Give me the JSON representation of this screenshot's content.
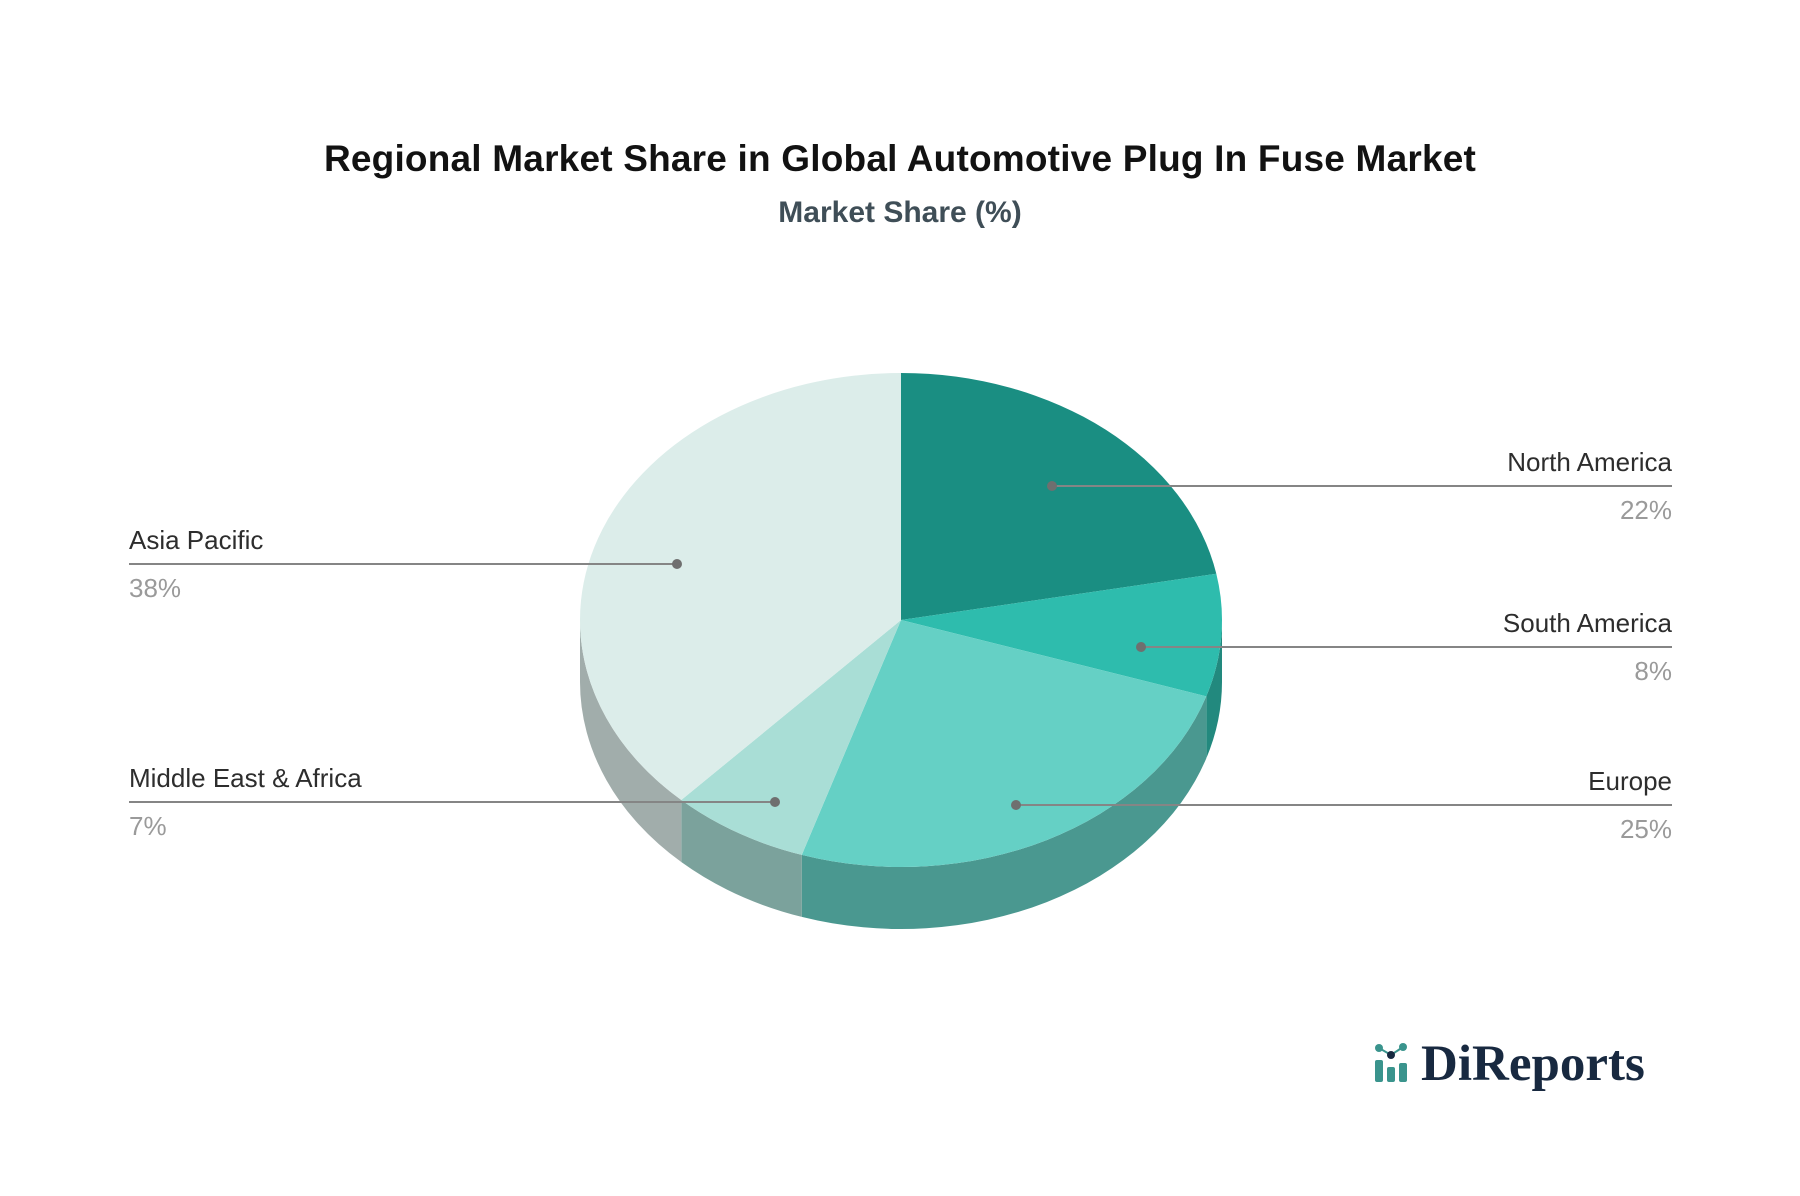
{
  "chart_data": {
    "type": "pie",
    "style": "3d",
    "title": "Regional Market Share in Global Automotive Plug In Fuse Market",
    "subtitle": "Market Share (%)",
    "categories": [
      "North America",
      "South America",
      "Europe",
      "Middle East & Africa",
      "Asia Pacific"
    ],
    "values": [
      22,
      8,
      25,
      7,
      38
    ],
    "value_labels": [
      "22%",
      "8%",
      "25%",
      "7%",
      "38%"
    ],
    "unit": "%",
    "colors": [
      "#1a8e82",
      "#2ebcad",
      "#65d0c5",
      "#a9ded6",
      "#dcedea"
    ],
    "start_angle": "top",
    "direction": "clockwise",
    "label_positions": [
      "right",
      "right",
      "right",
      "left",
      "left"
    ],
    "legend": "none",
    "label_text_color": "#2d2d2d",
    "pct_text_color": "#9a9a9a",
    "leader_line_color": "#858585",
    "leader_dot_color": "#6f6f6f"
  },
  "logo": {
    "text": "DiReports",
    "icon": "bar-line-chart-icon",
    "text_color": "#182940",
    "accent_color": "#3a948d"
  }
}
